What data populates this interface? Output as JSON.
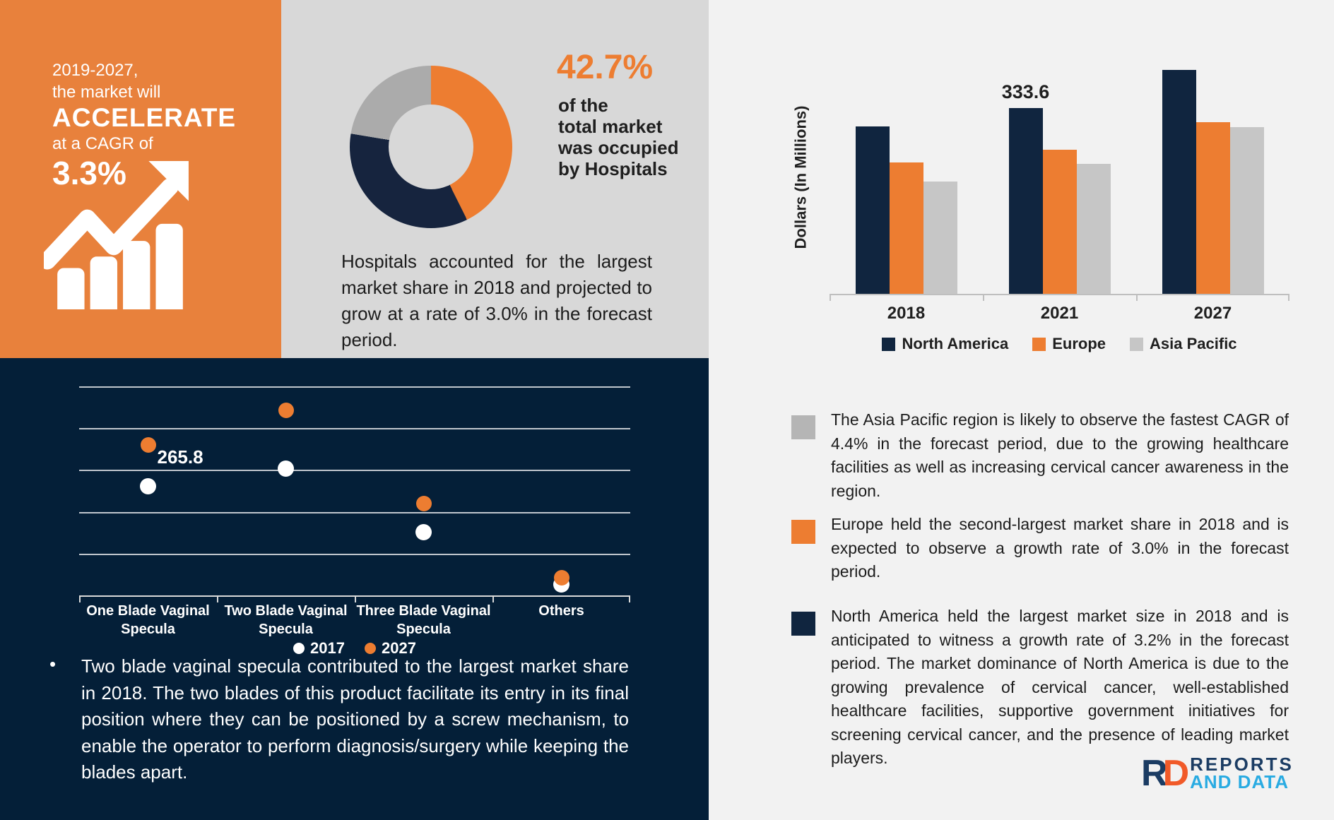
{
  "colors": {
    "accent_orange": "#ED7D31",
    "block_orange": "#E8813C",
    "panel_navy": "#041F38",
    "chart_navy": "#10253F",
    "light_gray_block": "#D8D8D8",
    "page_bg": "#F2F2F2",
    "logo_blue": "#29ABE2"
  },
  "accelerate_panel": {
    "period": "2019-2027,",
    "line2": "the market will",
    "headline": "ACCELERATE",
    "line4": "at a CAGR of",
    "cagr": "3.3%",
    "icon": "growth-arrow-icon"
  },
  "hospital_panel": {
    "stat_value": "42.7%",
    "stat_caption_lines": [
      "of the",
      "total market",
      "was occupied",
      "by Hospitals"
    ],
    "paragraph": "Hospitals accounted for the largest market share in 2018 and projected to grow at a rate of 3.0% in the forecast period."
  },
  "product_panel": {
    "bullet_marker": "•",
    "bullet_text": "Two blade vaginal specula contributed to the largest market share in 2018. The two blades of this product facilitate its entry in its final position where they can be positioned by a screw mechanism, to enable the operator to perform diagnosis/surgery while keeping the blades apart."
  },
  "region_panel": {
    "bullets": [
      {
        "color": "#B5B5B5",
        "label": "Asia Pacific",
        "text": "The Asia Pacific region is likely to observe the fastest CAGR of 4.4% in the forecast period, due to the growing healthcare facilities as well as increasing cervical cancer awareness in the region."
      },
      {
        "color": "#ED7D31",
        "label": "Europe",
        "text": "Europe held the second-largest market share in 2018 and is expected to observe a growth rate of 3.0% in the forecast period."
      },
      {
        "color": "#10253F",
        "label": "North America",
        "text": "North America held the largest market size in 2018 and is anticipated to witness a growth rate of 3.2% in the forecast period. The market dominance of North America is due to the growing prevalence of cervical cancer, well-established healthcare facilities, supportive government initiatives for screening cervical cancer, and the presence of leading market players."
      }
    ],
    "logo": {
      "letter_r": "R",
      "letter_d": "D",
      "line1": "REPORTS",
      "line2": "AND DATA",
      "navy": "#1B3C63",
      "orange": "#F15A29",
      "blue": "#29ABE2"
    }
  },
  "chart_data": [
    {
      "id": "hospital-share-donut",
      "type": "pie",
      "title": "",
      "slices": [
        {
          "label": "Hospitals",
          "value": 42.7,
          "color": "#ED7D31"
        },
        {
          "label": "",
          "value": 34.9,
          "color": "#16243E"
        },
        {
          "label": "",
          "value": 22.4,
          "color": "#ABABAB"
        }
      ],
      "annotation": "42.7% of the total market was occupied by Hospitals"
    },
    {
      "id": "regional-market-bars",
      "type": "bar",
      "categories": [
        "2018",
        "2021",
        "2027"
      ],
      "series": [
        {
          "name": "North America",
          "color": "#10253F",
          "values": [
            301,
            333.6,
            402
          ]
        },
        {
          "name": "Europe",
          "color": "#ED7D31",
          "values": [
            236,
            259,
            308
          ]
        },
        {
          "name": "Asia Pacific",
          "color": "#C6C6C6",
          "values": [
            202,
            233,
            299
          ]
        }
      ],
      "ylabel": "Dollars (In Millions)",
      "xlabel": "",
      "ylim": [
        0,
        420
      ],
      "grid": false,
      "legend_position": "bottom",
      "data_label": {
        "series": "North America",
        "category": "2021",
        "text": "333.6"
      }
    },
    {
      "id": "product-type-dotplot",
      "type": "scatter",
      "categories": [
        "One Blade Vaginal\nSpecula",
        "Two Blade Vaginal\nSpecula",
        "Three Blade Vaginal\nSpecula",
        "Others"
      ],
      "series": [
        {
          "name": "2017",
          "color": "#FFFFFF",
          "values": [
            193,
            225,
            112,
            19
          ]
        },
        {
          "name": "2027",
          "color": "#ED7D31",
          "values": [
            265.8,
            328,
            162,
            31
          ]
        }
      ],
      "ylim": [
        0,
        370
      ],
      "gridline_count": 5,
      "grid": true,
      "legend_position": "bottom",
      "data_label": {
        "series": "2027",
        "category": "One Blade Vaginal\nSpecula",
        "text": "265.8"
      }
    }
  ]
}
